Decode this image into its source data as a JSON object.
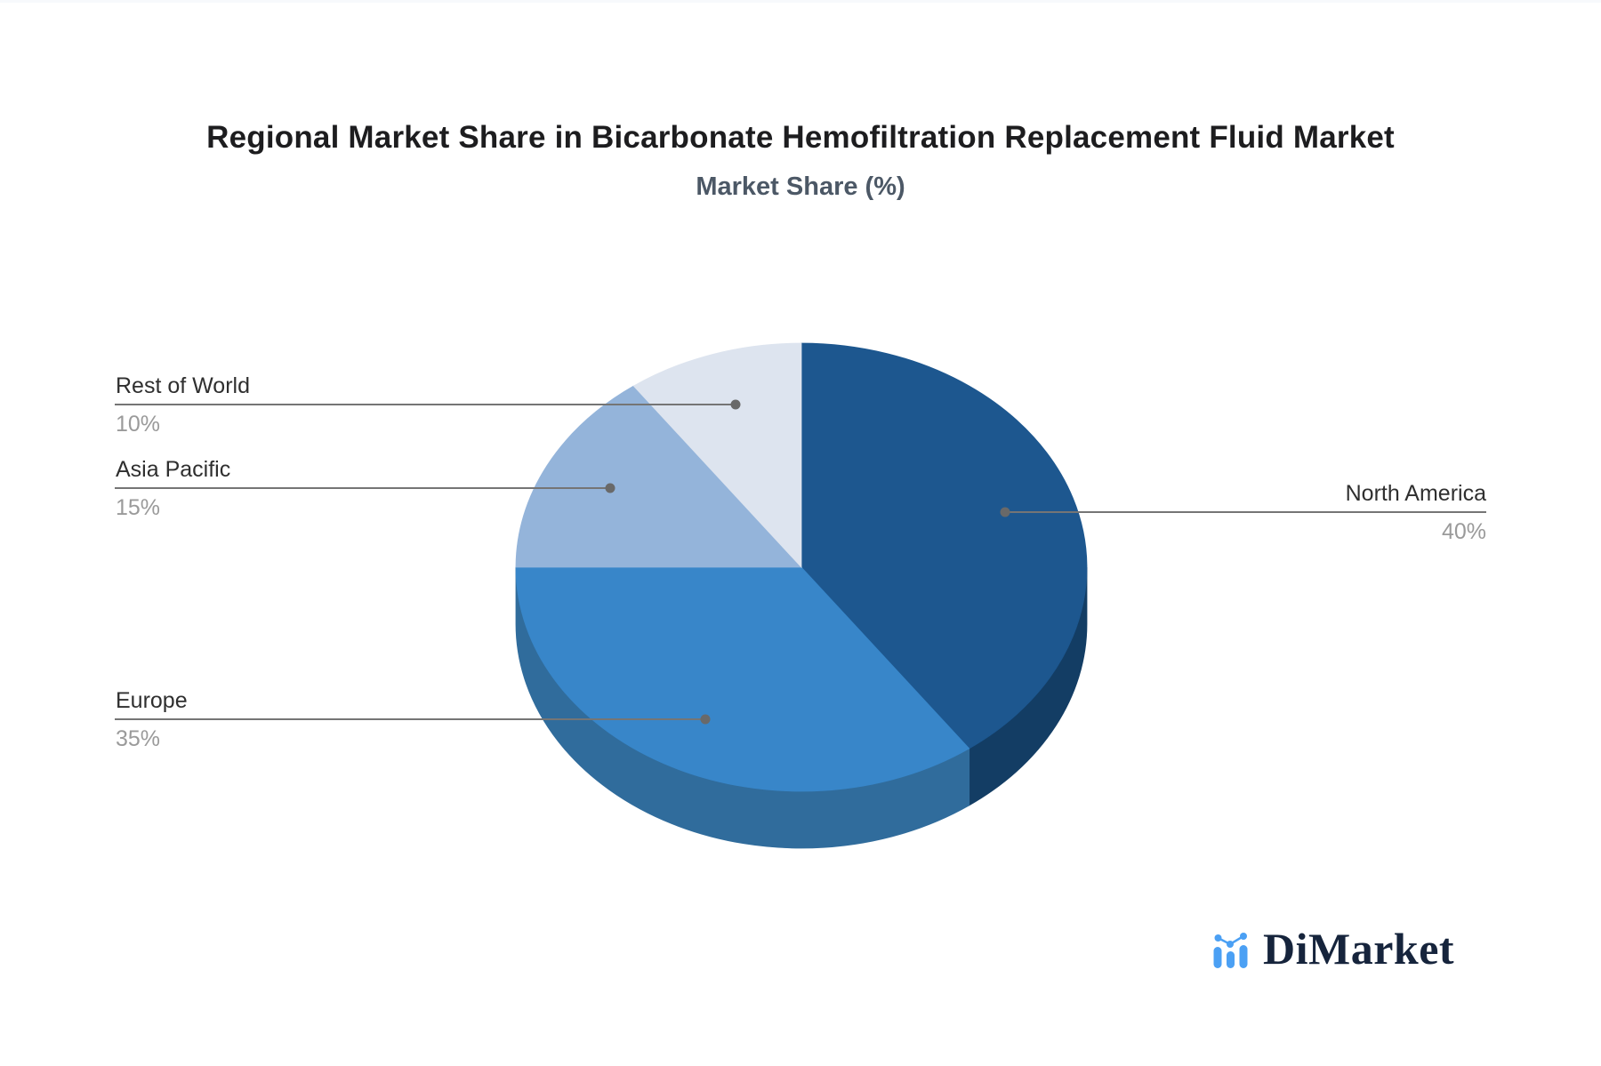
{
  "chart_data": {
    "type": "pie",
    "style": "3d",
    "title": "Regional Market Share in Bicarbonate Hemofiltration Replacement Fluid Market",
    "subtitle": "Market Share (%)",
    "unit": "%",
    "start_angle_deg": 0,
    "direction": "clockwise",
    "legend_position": "callout-labels",
    "grid": false,
    "slices": [
      {
        "label": "North America",
        "value": 40,
        "value_label": "40%",
        "color": "#1D578F",
        "depth_color": "#133D64"
      },
      {
        "label": "Europe",
        "value": 35,
        "value_label": "35%",
        "color": "#3886C9",
        "depth_color": "#306C9C"
      },
      {
        "label": "Asia Pacific",
        "value": 15,
        "value_label": "15%",
        "color": "#94B4DA",
        "depth_color": "#7C9CC4"
      },
      {
        "label": "Rest of World",
        "value": 10,
        "value_label": "10%",
        "color": "#DDE4EF",
        "depth_color": "#C2CBD9"
      }
    ],
    "callout": {
      "line_color": "#757575",
      "dot_color": "#696969",
      "label_color": "#2F2F2F",
      "value_color": "#9A9A9A"
    }
  },
  "branding": {
    "name": "DiMarket",
    "icon": "bar-line-chart-icon",
    "text_color": "#16243C",
    "icon_color": "#4BA0F4"
  }
}
